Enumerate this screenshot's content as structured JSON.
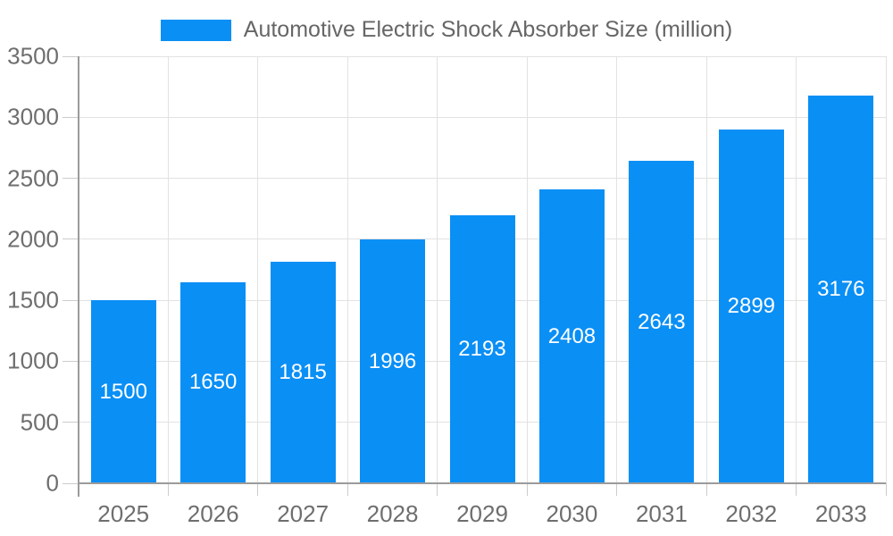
{
  "legend": {
    "label": "Automotive Electric Shock Absorber Size (million)"
  },
  "chart_data": {
    "type": "bar",
    "title": "Automotive Electric Shock Absorber Size (million)",
    "categories": [
      "2025",
      "2026",
      "2027",
      "2028",
      "2029",
      "2030",
      "2031",
      "2032",
      "2033"
    ],
    "values": [
      1500,
      1650,
      1815,
      1996,
      2193,
      2408,
      2643,
      2899,
      3176
    ],
    "series": [
      {
        "name": "Automotive Electric Shock Absorber Size (million)",
        "values": [
          1500,
          1650,
          1815,
          1996,
          2193,
          2408,
          2643,
          2899,
          3176
        ]
      }
    ],
    "xlabel": "",
    "ylabel": "",
    "ylim": [
      0,
      3500
    ],
    "ytick_step": 500,
    "ytick_labels": [
      "0",
      "500",
      "1000",
      "1500",
      "2000",
      "2500",
      "3000",
      "3500"
    ],
    "grid": true,
    "legend_position": "top-center",
    "value_labels": "inside-center"
  },
  "colors": {
    "bar": "#0a8ff5",
    "grid": "#e2e2e2",
    "tick": "#cccccc",
    "axis": "#9b9b9b",
    "axis_text": "#6e6e6e",
    "legend_text": "#666666",
    "bar_label_text": "#ffffff",
    "background": "#ffffff"
  }
}
